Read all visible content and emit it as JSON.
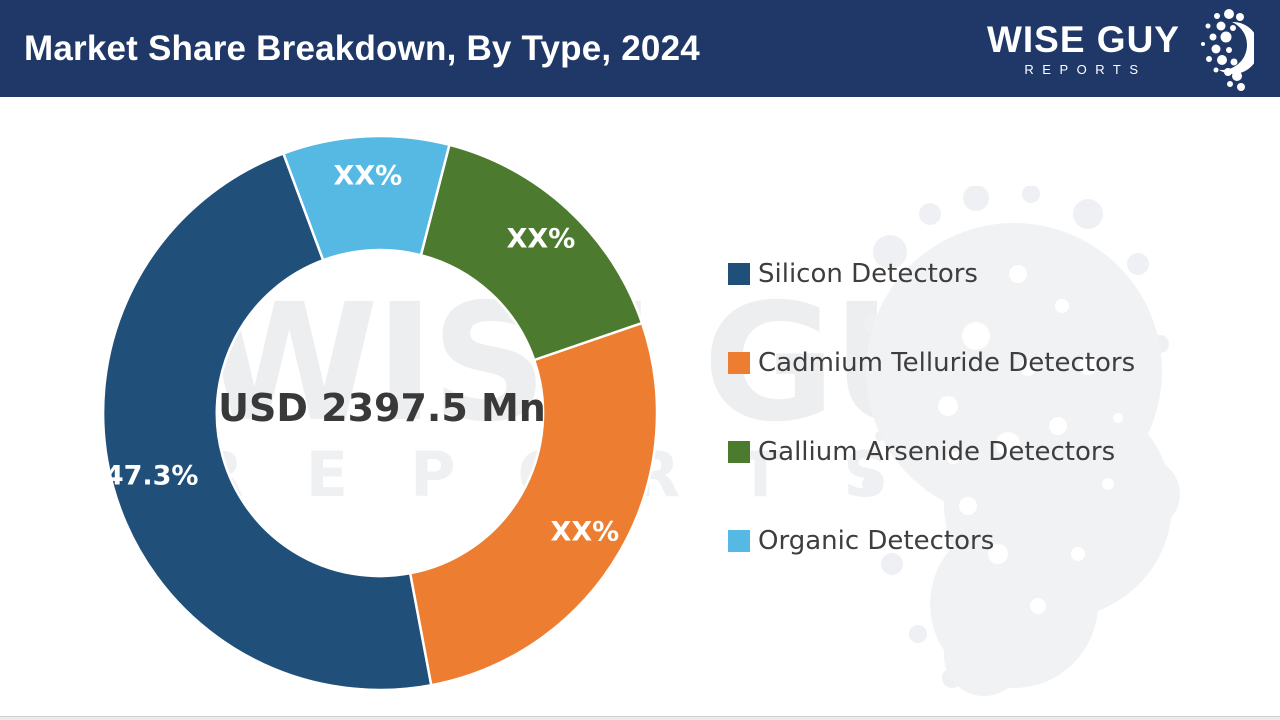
{
  "header": {
    "title": "Market Share Breakdown, By Type, 2024",
    "bg_color": "#1F3868",
    "logo": {
      "line1": "WISE GUY",
      "line2": "REPORTS"
    }
  },
  "watermark": {
    "line1": "WISE GUY",
    "line2": "REPORTS"
  },
  "chart_data": {
    "type": "pie",
    "subtype": "donut",
    "title": "Market Share Breakdown, By Type, 2024",
    "center_label": "USD 2397.5 Mn",
    "legend_position": "right",
    "direction": "ccw",
    "start_angle_deg": 339.6,
    "donut": {
      "cx": 380,
      "cy": 413,
      "outer_r": 277,
      "inner_r": 163,
      "label_r": 237
    },
    "series": [
      {
        "name": "Silicon Detectors",
        "value": 47.3,
        "label": "47.3%",
        "color": "#20507A"
      },
      {
        "name": "Cadmium Telluride Detectors",
        "value": 27.3,
        "label": "XX%",
        "color": "#ED7D31"
      },
      {
        "name": "Gallium Arsenide Detectors",
        "value": 15.7,
        "label": "XX%",
        "color": "#4C7A2E"
      },
      {
        "name": "Organic Detectors",
        "value": 9.7,
        "label": "XX%",
        "color": "#56B9E4"
      }
    ]
  }
}
